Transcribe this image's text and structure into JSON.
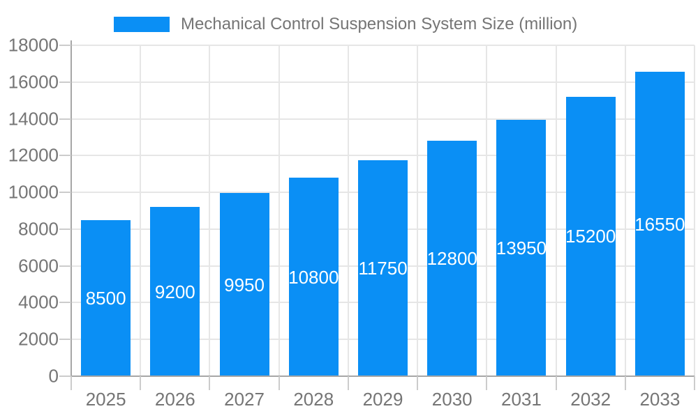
{
  "chart_data": {
    "type": "bar",
    "title": "Mechanical Control Suspension System Size (million)",
    "categories": [
      "2025",
      "2026",
      "2027",
      "2028",
      "2029",
      "2030",
      "2031",
      "2032",
      "2033"
    ],
    "values": [
      8500,
      9200,
      9950,
      10800,
      11750,
      12800,
      13950,
      15200,
      16550
    ],
    "xlabel": "",
    "ylabel": "",
    "ylim": [
      0,
      18000
    ],
    "y_ticks": [
      0,
      2000,
      4000,
      6000,
      8000,
      10000,
      12000,
      14000,
      16000,
      18000
    ],
    "grid": true,
    "legend_position": "top",
    "value_label_position": "inside-center",
    "colors": {
      "bar": "#0a8ff5",
      "grid": "#e6e6e6",
      "axis": "#a6a6a6",
      "tick": "#cccccc",
      "label": "#757575",
      "value_label": "#ffffff",
      "background": "#ffffff"
    }
  }
}
